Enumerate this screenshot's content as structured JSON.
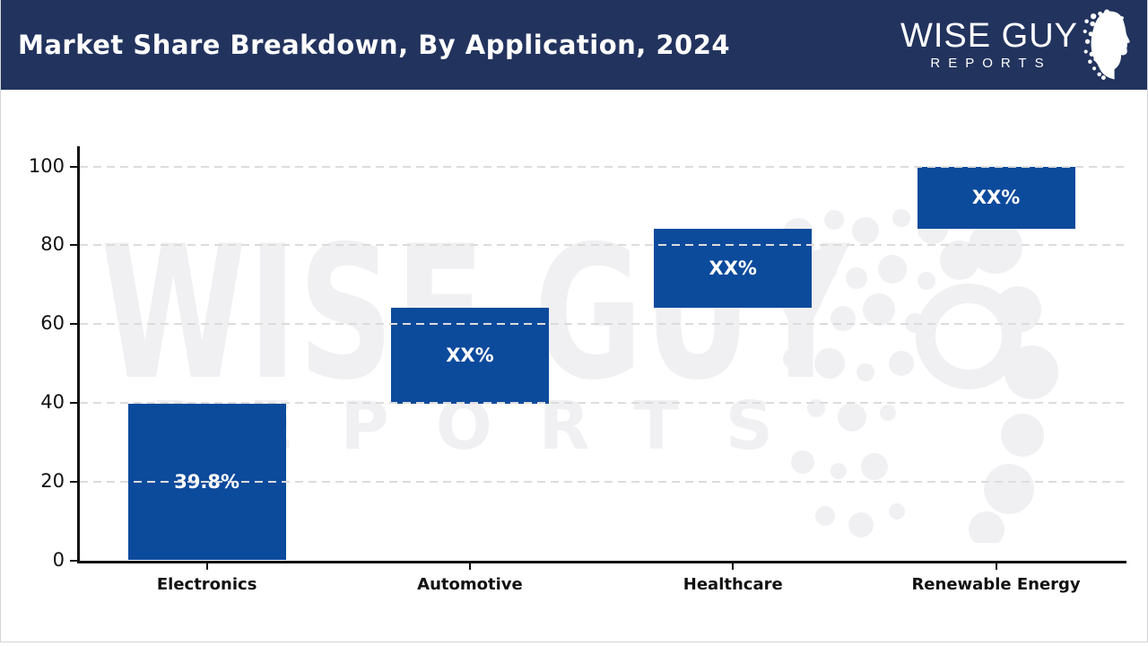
{
  "header": {
    "title": "Market Share Breakdown, By Application, 2024",
    "logo": {
      "line1": "WISE GUY",
      "line2": "REPORTS"
    }
  },
  "watermark": {
    "line1": "WISE GUY",
    "line2": "REPORTS"
  },
  "icons": {
    "logo_head": "dotted-head-profile-icon",
    "watermark_head": "dotted-head-profile-watermark"
  },
  "colors": {
    "header_bg": "#22335e",
    "page_bg": "#ffffff",
    "frame_border": "#d4d4d8",
    "watermark": "#f0f0f2"
  },
  "chart_data": {
    "type": "bar",
    "subtype": "waterfall",
    "title": "Market Share Breakdown, By Application, 2024",
    "categories": [
      "Electronics",
      "Automotive",
      "Healthcare",
      "Renewable Energy"
    ],
    "series": [
      {
        "name": "Market share (%)",
        "segments": [
          {
            "category": "Electronics",
            "start": 0,
            "end": 39.8,
            "label": "39.8%"
          },
          {
            "category": "Automotive",
            "start": 39.8,
            "end": 64.2,
            "label": "XX%"
          },
          {
            "category": "Healthcare",
            "start": 64.2,
            "end": 84.2,
            "label": "XX%"
          },
          {
            "category": "Renewable Energy",
            "start": 84.2,
            "end": 100,
            "label": "XX%"
          }
        ]
      }
    ],
    "xlabel": "",
    "ylabel": "",
    "ylim": [
      0,
      105
    ],
    "yticks": [
      0,
      20,
      40,
      60,
      80,
      100
    ],
    "grid": "horizontal-dashed",
    "legend": "none",
    "bar_color": "#0c4a9c",
    "label_color": "#ffffff",
    "grid_color": "#dcdcdc",
    "axis_color": "#111111"
  }
}
